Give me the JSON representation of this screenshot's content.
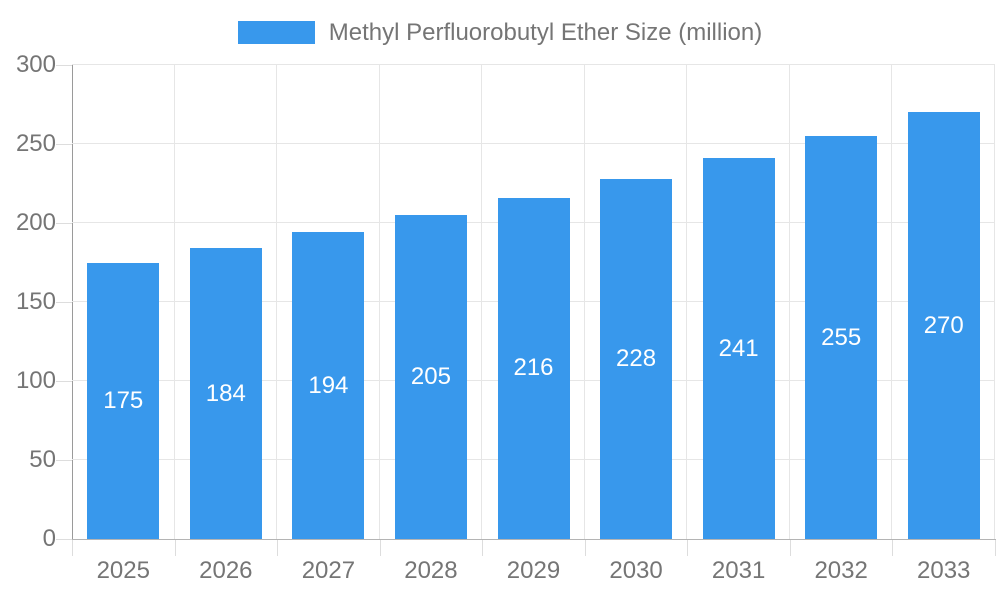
{
  "chart_data": {
    "type": "bar",
    "title": "Methyl Perfluorobutyl Ether Size (million)",
    "categories": [
      "2025",
      "2026",
      "2027",
      "2028",
      "2029",
      "2030",
      "2031",
      "2032",
      "2033"
    ],
    "values": [
      175,
      184,
      194,
      205,
      216,
      228,
      241,
      255,
      270
    ],
    "xlabel": "",
    "ylabel": "",
    "ylim": [
      0,
      300
    ],
    "ytick_step": 50,
    "grid": true,
    "legend_position": "top-center",
    "value_labels": "inside-center"
  },
  "colors": {
    "bar": "#3898EC",
    "value_label": "#ffffff",
    "axis_text": "#757575",
    "gridline": "#e6e6e6",
    "tick": "#dddddd",
    "y_axis_line": "#9a9a9a",
    "x_axis_line": "#b4b4b4",
    "background": "#ffffff"
  }
}
